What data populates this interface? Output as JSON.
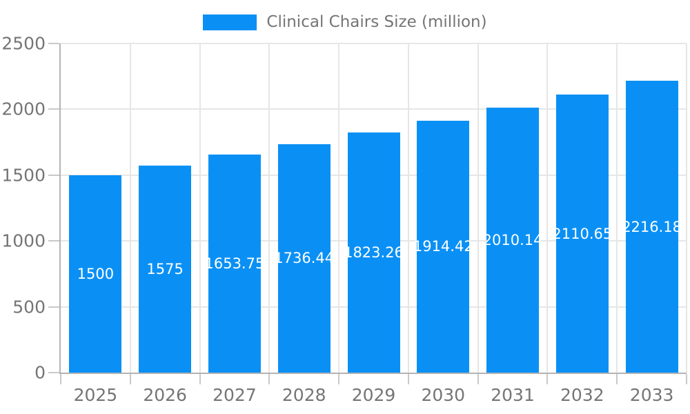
{
  "chart_data": {
    "type": "bar",
    "title": "Clinical Chairs Size (million)",
    "legend_position": "top",
    "categories": [
      "2025",
      "2026",
      "2027",
      "2028",
      "2029",
      "2030",
      "2031",
      "2032",
      "2033"
    ],
    "series": [
      {
        "name": "Clinical Chairs Size (million)",
        "values": [
          1500,
          1575,
          1653.75,
          1736.44,
          1823.26,
          1914.42,
          2010.14,
          2110.65,
          2216.18
        ],
        "value_labels": [
          "1500",
          "1575",
          "1653.75",
          "1736.44",
          "1823.26",
          "1914.42",
          "2010.14",
          "2110.65",
          "2216.18"
        ]
      }
    ],
    "ylim": [
      0,
      2500
    ],
    "yticks": [
      0,
      500,
      1000,
      1500,
      2000,
      2500
    ],
    "grid": true,
    "value_labels_position": "center-of-bar",
    "colors": {
      "bar": "#0a90f5",
      "grid": "#e6e6e6",
      "axis": "#b3b3b3",
      "tick": "#c9c9c9",
      "text": "#757575",
      "value_label": "#ffffff",
      "background": "#ffffff"
    }
  }
}
